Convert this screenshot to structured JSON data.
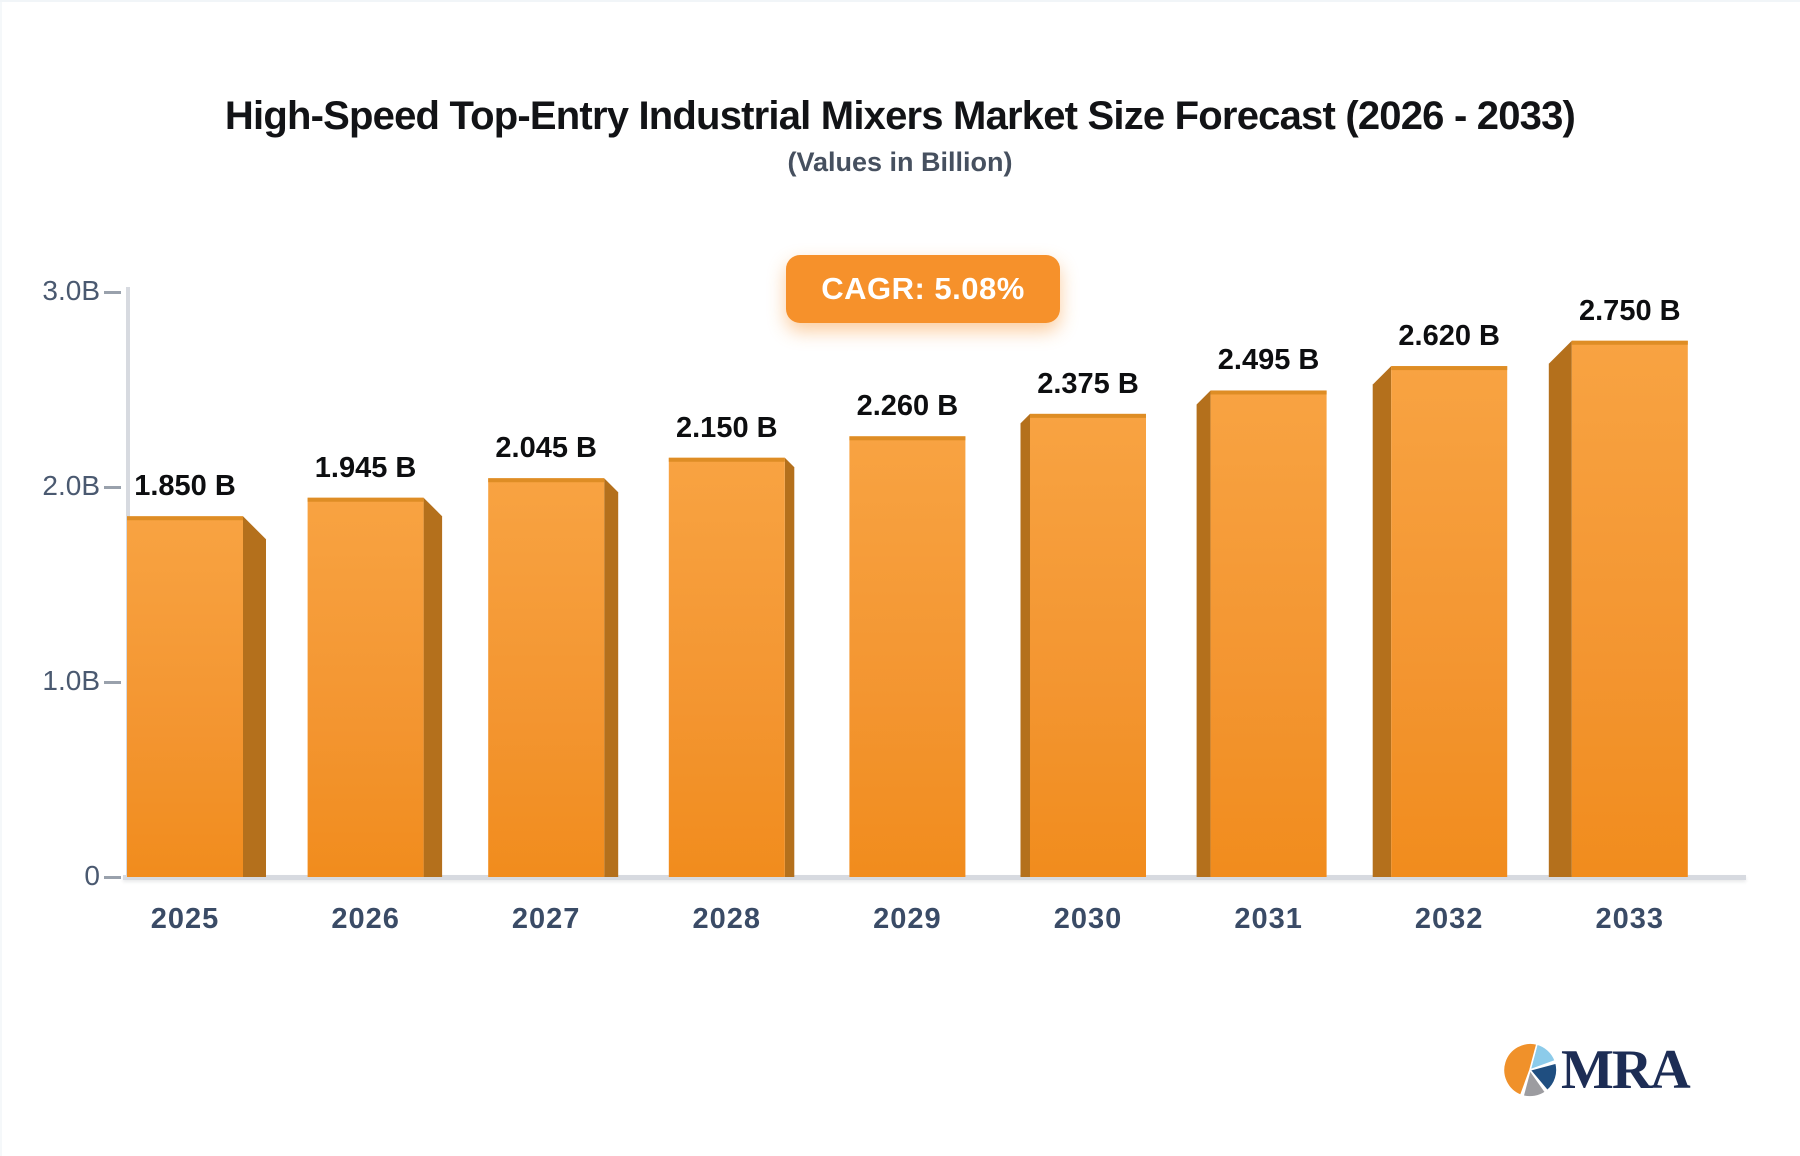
{
  "header": {
    "title": "High-Speed Top-Entry Industrial Mixers Market Size Forecast (2026 - 2033)",
    "subtitle": "(Values in Billion)",
    "cagr_label": "CAGR: 5.08%"
  },
  "chart_data": {
    "type": "bar",
    "title": "High-Speed Top-Entry Industrial Mixers Market Size Forecast (2026 - 2033)",
    "subtitle": "(Values in Billion)",
    "categories": [
      "2025",
      "2026",
      "2027",
      "2028",
      "2029",
      "2030",
      "2031",
      "2032",
      "2033"
    ],
    "values": [
      1.85,
      1.945,
      2.045,
      2.15,
      2.26,
      2.375,
      2.495,
      2.62,
      2.75
    ],
    "value_labels": [
      "1.850 B",
      "1.945 B",
      "2.045 B",
      "2.150 B",
      "2.260 B",
      "2.375 B",
      "2.495 B",
      "2.620 B",
      "2.750 B"
    ],
    "cagr": "5.08%",
    "xlabel": "",
    "ylabel": "",
    "ylim": [
      0,
      3
    ],
    "yticks": {
      "values": [
        0,
        1,
        2,
        3
      ],
      "labels": [
        "0",
        "1.0B",
        "2.0B",
        "3.0B"
      ]
    },
    "grid": false,
    "legend": "none",
    "style": "3d-column",
    "colors": {
      "bar_face_top": "#f8a342",
      "bar_face_bottom": "#f18c1d",
      "bar_top_edge": "#de8d25",
      "bar_side": "#b4701c",
      "axis_line": "#d7dae0",
      "tick_text": "#4a5970",
      "category_text": "#3a4b66",
      "value_text": "#0d0e10",
      "accent": "#f6912b"
    }
  },
  "logo": {
    "text": "MRA",
    "colors": {
      "orange": "#f0912a",
      "lightblue": "#8ccbea",
      "navy": "#1f4e80",
      "gray": "#9c9ca0",
      "text": "#1d2d55"
    }
  }
}
